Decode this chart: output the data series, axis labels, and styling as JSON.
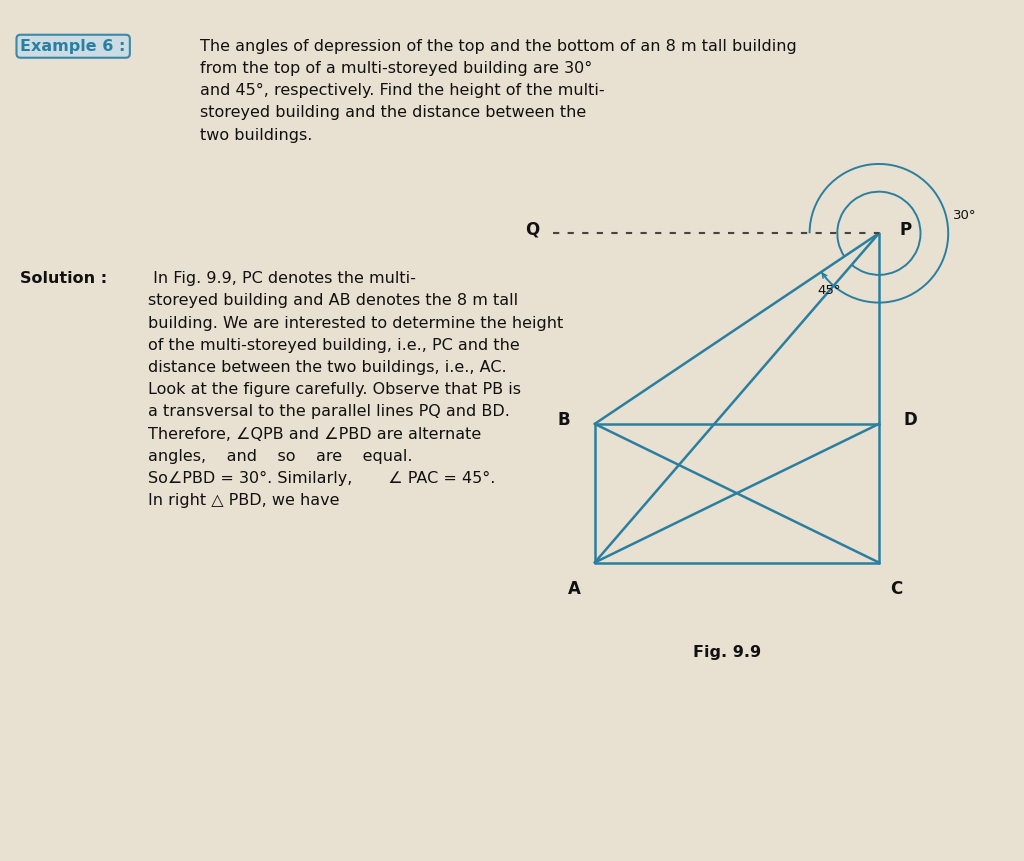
{
  "fig_width": 10.24,
  "fig_height": 8.61,
  "dpi": 100,
  "bg_color": "#e8e0d0",
  "line_color": "#2a7fa0",
  "text_color": "#111111",
  "blue_color": "#2a7fa0",
  "example_bold": "Example 6 :",
  "example_rest": " The angles of depression of the top and the bottom of an 8 m tall building\nfrom the top of a multi-storeyed building are 30°\nand 45°, respectively. Find the height of the multi-\nstoreyed building and the distance between the\ntwo buildings.",
  "solution_bold": "Solution :",
  "solution_rest": " In Fig. 9.9, PC denotes the multi-\nstoreyed building and AB denotes the 8 m tall\nbuilding. We are interested to determine the height\nof the multi-storeyed building, i.e., PC and the\ndistance between the two buildings, i.e., AC.\nLook at the figure carefully. Observe that PB is\na transversal to the parallel lines PQ and BD.\nTherefore, ∠QPB and ∠PBD are alternate\nangles,    and    so    are    equal.\nSo∠PBD = 30°. Similarly,       ∠ PAC = 45°.\nIn right △ PBD, we have",
  "fig_label": "Fig. 9.9",
  "angle_30": "30°",
  "angle_45": "45°",
  "label_A": "A",
  "label_B": "B",
  "label_C": "C",
  "label_D": "D",
  "label_P": "P",
  "label_Q": "Q"
}
